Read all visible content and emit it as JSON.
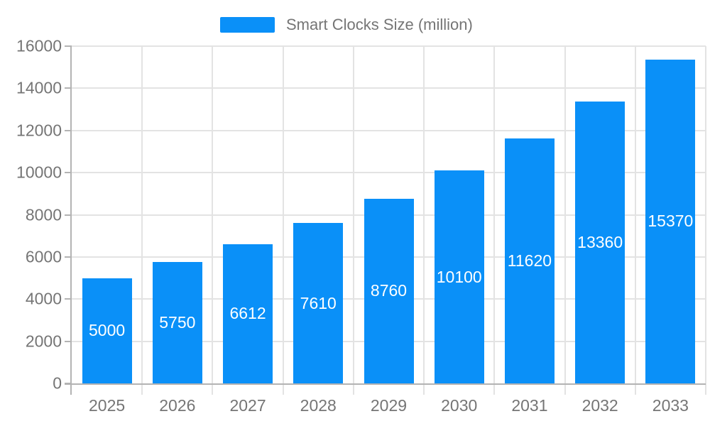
{
  "chart_data": {
    "type": "bar",
    "title": "Smart Clocks Size (million)",
    "legend": {
      "label": "Smart Clocks Size (million)",
      "position": "top-center",
      "swatch": "blue-rect"
    },
    "categories": [
      "2025",
      "2026",
      "2027",
      "2028",
      "2029",
      "2030",
      "2031",
      "2032",
      "2033"
    ],
    "series": [
      {
        "name": "Smart Clocks Size (million)",
        "values": [
          5000,
          5750,
          6612,
          7610,
          8760,
          10100,
          11620,
          13360,
          15370
        ]
      }
    ],
    "value_labels_visible": true,
    "xlabel": "",
    "ylabel": "",
    "ylim": [
      0,
      16000
    ],
    "ytick_interval": 2000,
    "ytick_labels": [
      "0",
      "2000",
      "4000",
      "6000",
      "8000",
      "10000",
      "12000",
      "14000",
      "16000"
    ],
    "grid": true,
    "colors": {
      "bar": "#0a90f8",
      "axis": "#b3b3b3",
      "grid": "#e3e3e3",
      "text": "#757575",
      "value_label": "#ffffff",
      "background": "#ffffff"
    }
  }
}
